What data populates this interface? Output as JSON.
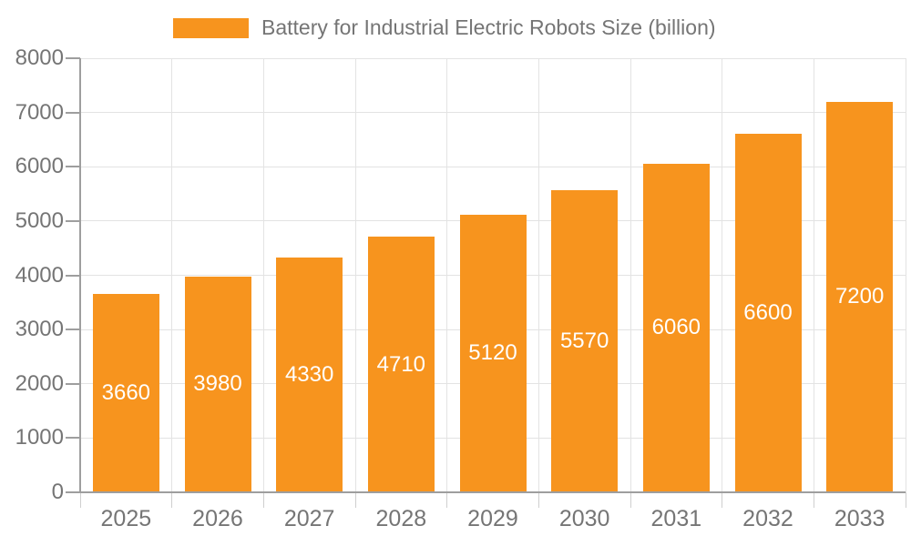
{
  "legend": {
    "label": "Battery for Industrial Electric Robots Size (billion)"
  },
  "chart_data": {
    "type": "bar",
    "title": "Battery for Industrial Electric Robots Size (billion)",
    "series_name": "Battery for Industrial Electric Robots Size (billion)",
    "categories": [
      "2025",
      "2026",
      "2027",
      "2028",
      "2029",
      "2030",
      "2031",
      "2032",
      "2033"
    ],
    "values": [
      3660,
      3980,
      4330,
      4710,
      5120,
      5570,
      6060,
      6600,
      7200
    ],
    "value_labels": [
      "3660",
      "3980",
      "4330",
      "4710",
      "5120",
      "5570",
      "6060",
      "6600",
      "7200"
    ],
    "xlabel": "",
    "ylabel": "",
    "ylim": [
      0,
      8000
    ],
    "y_ticks": [
      0,
      1000,
      2000,
      3000,
      4000,
      5000,
      6000,
      7000,
      8000
    ],
    "y_tick_labels": [
      "0",
      "1000",
      "2000",
      "3000",
      "4000",
      "5000",
      "6000",
      "7000",
      "8000"
    ],
    "grid": "horizontal and vertical light gray gridlines",
    "legend_position": "top",
    "value_label_position": "center of bar"
  },
  "colors": {
    "bar": "#F7941E",
    "axis": "#9E9E9E",
    "grid": "#E3E3E3",
    "tick_text": "#757575",
    "value_label": "#FFFFFF",
    "background": "#FFFFFF"
  }
}
